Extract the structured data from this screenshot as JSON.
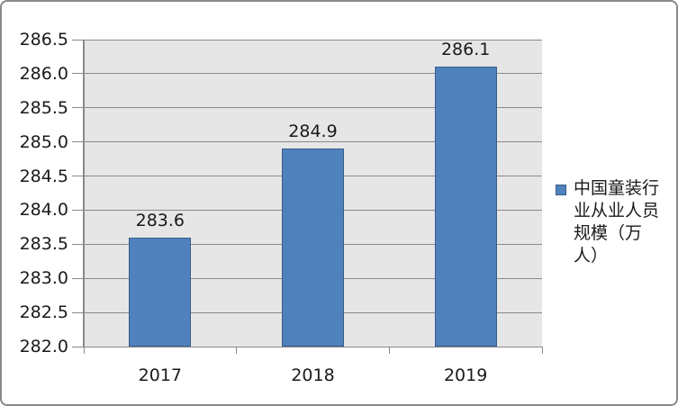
{
  "chart_data": {
    "type": "bar",
    "title": "",
    "categories": [
      "2017",
      "2018",
      "2019"
    ],
    "values": [
      283.6,
      284.9,
      286.1
    ],
    "value_labels": [
      "283.6",
      "284.9",
      "286.1"
    ],
    "series_name": "中国童装行业从业人员规模（万人）",
    "legend_lines": [
      "中国童装行",
      "业从业人员",
      "规模（万",
      "人）"
    ],
    "legend_position": "right",
    "xlabel": "",
    "ylabel": "",
    "ylim": [
      282.0,
      286.5
    ],
    "ytick_step": 0.5,
    "ytick_decimals": 1,
    "grid": "horizontal-major",
    "colors": {
      "bar_fill": "#4F81BD",
      "bar_border": "#385D8A",
      "plot_background": "#E6E6E6",
      "gridline": "#8A8A8A",
      "axis": "#8A8A8A",
      "frame_border": "#8A8A8A",
      "text": "#1A1A1A",
      "page_background": "#FFFFFF"
    }
  }
}
